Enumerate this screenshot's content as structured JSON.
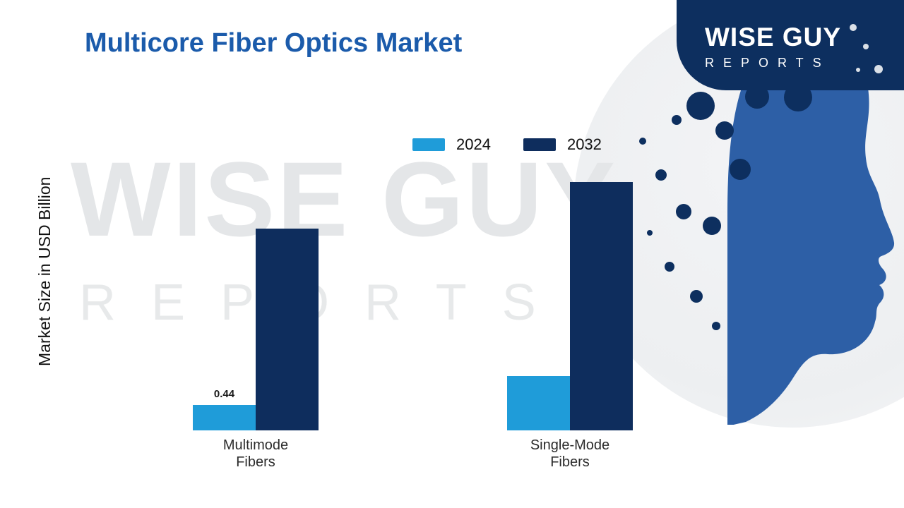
{
  "page": {
    "title": "Multicore Fiber Optics Market"
  },
  "brand": {
    "name": "WISE GUY",
    "subtitle": "REPORTS"
  },
  "watermark": {
    "line1": "WISE GUY",
    "line2": "REPORTS"
  },
  "chart_data": {
    "type": "bar",
    "title": "Multicore Fiber Optics Market",
    "ylabel": "Market Size in USD Billion",
    "xlabel": "",
    "categories": [
      "Multimode Fibers",
      "Single-Mode Fibers"
    ],
    "series": [
      {
        "name": "2024",
        "color": "#1f9cd9",
        "values": [
          0.44,
          0.94
        ],
        "value_labels": [
          "0.44",
          ""
        ]
      },
      {
        "name": "2032",
        "color": "#0e2d5d",
        "values": [
          3.5,
          4.3
        ],
        "value_labels": [
          "",
          ""
        ]
      }
    ],
    "ylim": [
      0,
      4.4
    ],
    "grid": false,
    "legend_position": "top-center",
    "visible_data_labels": [
      "0.44"
    ]
  },
  "colors": {
    "title_blue": "#1b5bab",
    "bar_2024": "#1f9cd9",
    "bar_2032": "#0e2d5d",
    "logo_navy": "#0d2f5f",
    "watermark_gray": "#e4e6e8"
  }
}
